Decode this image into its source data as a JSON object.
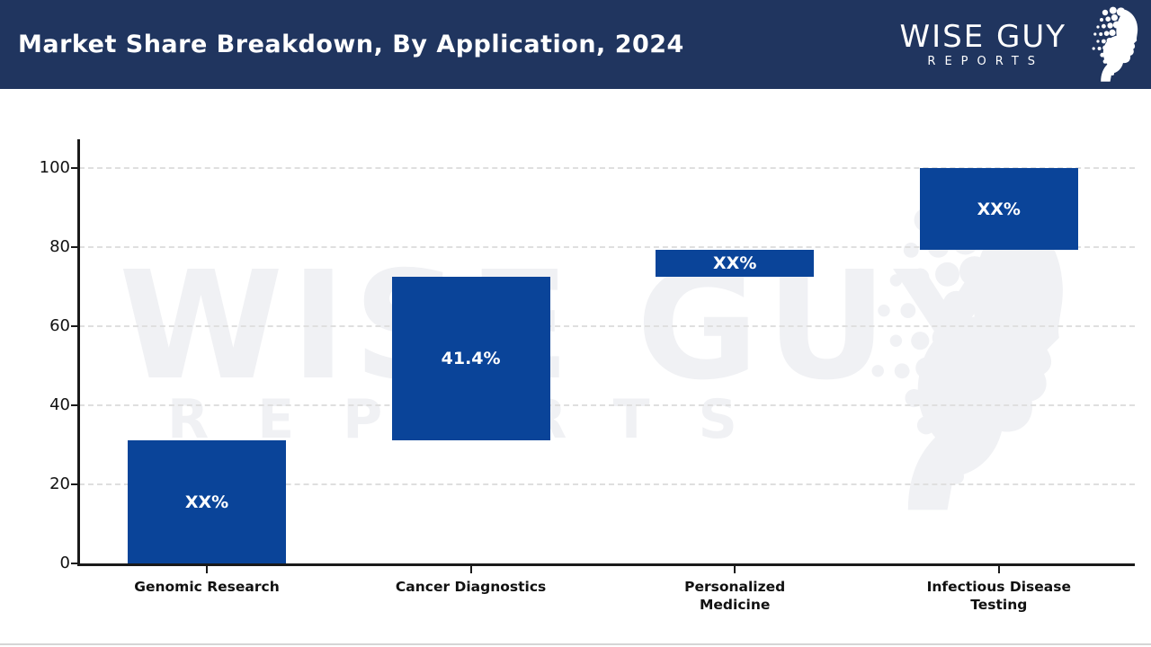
{
  "header": {
    "title": "Market Share Breakdown, By Application, 2024",
    "logo": {
      "line1": "WISE GUY",
      "line2": "REPORTS"
    }
  },
  "watermark": {
    "line1": "WISE GUY",
    "line2": "REPORTS"
  },
  "chart_data": {
    "type": "bar",
    "subtype": "waterfall",
    "title": "Market Share Breakdown, By Application, 2024",
    "categories": [
      "Genomic Research",
      "Cancer Diagnostics",
      "Personalized\nMedicine",
      "Infectious Disease\nTesting"
    ],
    "bars": [
      {
        "category": "Genomic Research",
        "start": 0,
        "end": 31.1,
        "value": 31.1,
        "label": "XX%"
      },
      {
        "category": "Cancer Diagnostics",
        "start": 31.1,
        "end": 72.5,
        "value": 41.4,
        "label": "41.4%"
      },
      {
        "category": "Personalized Medicine",
        "start": 72.5,
        "end": 79.3,
        "value": 6.8,
        "label": "XX%"
      },
      {
        "category": "Infectious Disease Testing",
        "start": 79.3,
        "end": 100,
        "value": 20.7,
        "label": "XX%"
      }
    ],
    "ylim": [
      0,
      100
    ],
    "yticks": [
      0,
      20,
      40,
      60,
      80,
      100
    ],
    "grid": "horizontal-dashed",
    "legend": null,
    "bar_color": "#0a4499",
    "bar_label_color": "#ffffff",
    "axis_color": "#1a1a1a",
    "grid_color": "#dfdfdf",
    "header_bg_color": "#20355f",
    "watermark_color": "#f0f1f4"
  }
}
